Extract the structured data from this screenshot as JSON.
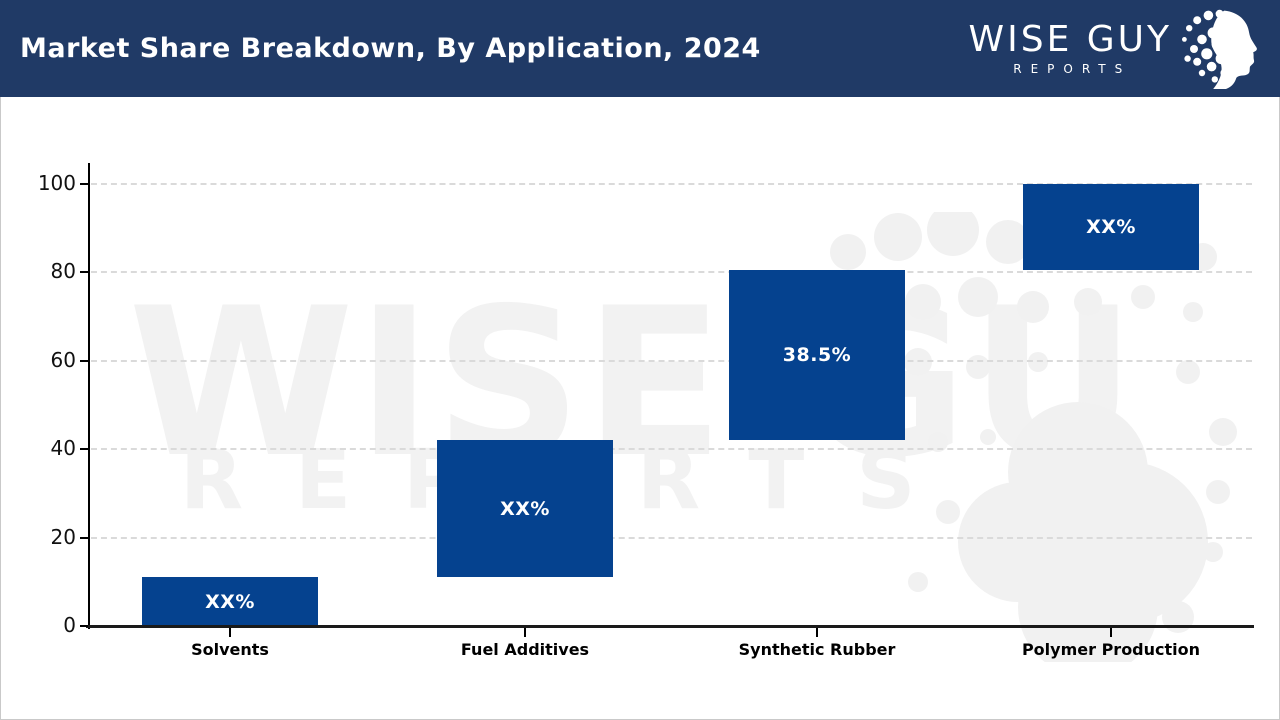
{
  "header": {
    "title": "Market Share Breakdown, By Application, 2024",
    "brand_line1": "WISE GUY",
    "brand_line2": "REPORTS"
  },
  "watermark": {
    "line1": "WISE GU",
    "line2": "REPORTS"
  },
  "colors": {
    "header_bg": "#203a66",
    "bar": "#05428f",
    "grid": "#dadada",
    "watermark": "#f2f2f2",
    "title_text": "#ffffff"
  },
  "chart_data": {
    "type": "bar",
    "subtype": "floating-waterfall",
    "title": "Market Share Breakdown, By Application, 2024",
    "categories": [
      "Solvents",
      "Fuel Additives",
      "Synthetic Rubber",
      "Polymer Production"
    ],
    "bars": [
      {
        "category": "Solvents",
        "start": 0,
        "end": 11,
        "value": 11,
        "label": "XX%"
      },
      {
        "category": "Fuel Additives",
        "start": 11,
        "end": 42,
        "value": 31,
        "label": "XX%"
      },
      {
        "category": "Synthetic Rubber",
        "start": 42,
        "end": 80.5,
        "value": 38.5,
        "label": "38.5%"
      },
      {
        "category": "Polymer Production",
        "start": 80.5,
        "end": 100,
        "value": 19.5,
        "label": "XX%"
      }
    ],
    "xlabel": "",
    "ylabel": "",
    "ylim": [
      0,
      100
    ],
    "yticks": [
      0,
      20,
      40,
      60,
      80,
      100
    ],
    "grid": "horizontal-dashed",
    "legend": "none"
  }
}
